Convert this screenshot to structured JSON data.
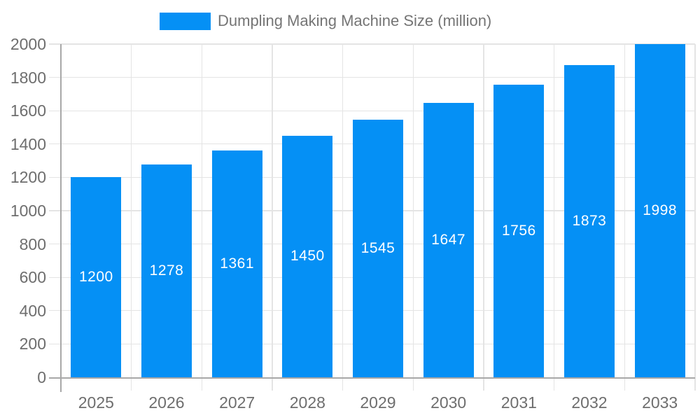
{
  "legend": {
    "label": "Dumpling Making Machine Size (million)"
  },
  "chart_data": {
    "type": "bar",
    "title": "Dumpling Making Machine Size (million)",
    "series_name": "Dumpling Making Machine Size (million)",
    "categories": [
      "2025",
      "2026",
      "2027",
      "2028",
      "2029",
      "2030",
      "2031",
      "2032",
      "2033"
    ],
    "values": [
      1200,
      1278,
      1361,
      1450,
      1545,
      1647,
      1756,
      1873,
      1998
    ],
    "xlabel": "",
    "ylabel": "",
    "ylim": [
      0,
      2000
    ],
    "yticks": [
      0,
      200,
      400,
      600,
      800,
      1000,
      1200,
      1400,
      1600,
      1800,
      2000
    ],
    "grid": true,
    "legend_position": "top",
    "value_labels_inside_bars": true,
    "colors": {
      "bar": "#0590F5",
      "value_label": "#ffffff",
      "axis_text": "#6e6e6e",
      "legend_text": "#757575",
      "gridline": "#e4e4e4",
      "axis_line": "#a8a8a8"
    }
  }
}
